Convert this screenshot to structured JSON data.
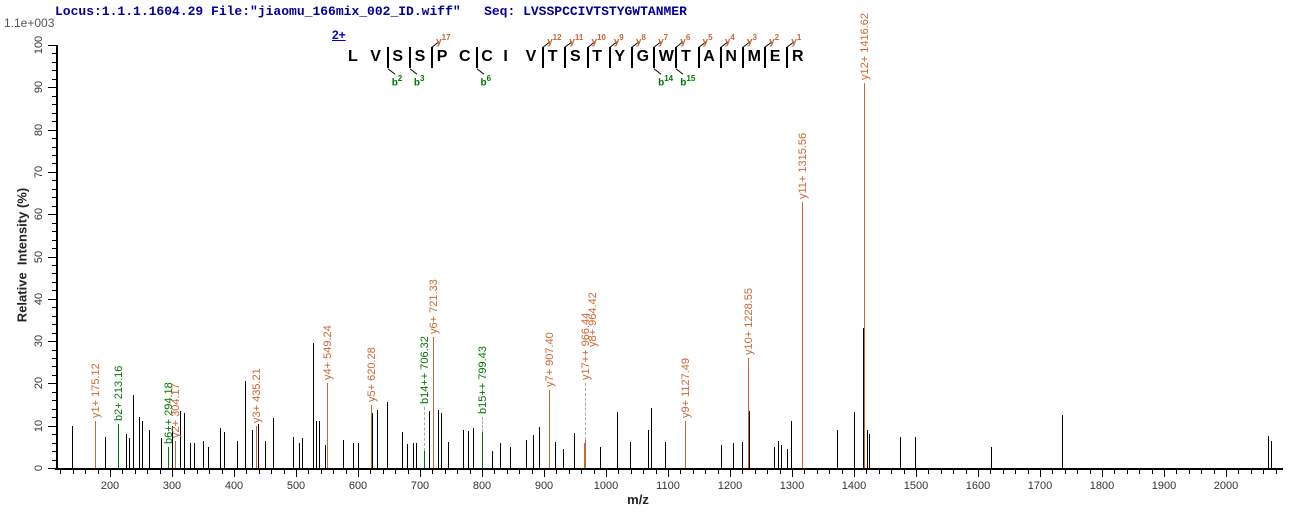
{
  "header": {
    "title_line": "Locus:1.1.1.1604.29 File:\"jiaomu_166mix_002_ID.wiff\"   Seq: LVSSPCCIVTSTYGWTANMER",
    "max_intensity": "1.1e+003"
  },
  "sequence": {
    "charge": "2+",
    "residues": [
      "L",
      "V",
      "S",
      "S",
      "P",
      "C",
      "C",
      "I",
      "V",
      "T",
      "S",
      "T",
      "Y",
      "G",
      "W",
      "T",
      "A",
      "N",
      "M",
      "E",
      "R"
    ],
    "cleavages": [
      {
        "after": 2,
        "b": "b2"
      },
      {
        "after": 3,
        "b": "b3"
      },
      {
        "after": 4,
        "y": "y17"
      },
      {
        "after": 6,
        "b": "b6"
      },
      {
        "after": 9,
        "y": "y12"
      },
      {
        "after": 10,
        "y": "y11"
      },
      {
        "after": 11,
        "y": "y10"
      },
      {
        "after": 12,
        "y": "y9"
      },
      {
        "after": 13,
        "y": "y8"
      },
      {
        "after": 14,
        "y": "y7",
        "b": "b14"
      },
      {
        "after": 15,
        "y": "y6",
        "b": "b15"
      },
      {
        "after": 16,
        "y": "y5"
      },
      {
        "after": 17,
        "y": "y4"
      },
      {
        "after": 18,
        "y": "y3"
      },
      {
        "after": 19,
        "y": "y2"
      },
      {
        "after": 20,
        "y": "y1"
      }
    ]
  },
  "colors": {
    "y_ion": "#cc6633",
    "b_ion": "#007700",
    "peak": "#000000",
    "header_text": "#000099",
    "charge": "#0000cc",
    "leader_dash": "#aaaaaa"
  },
  "chart_data": {
    "type": "bar",
    "subtype": "ms2-fragment-spectrum",
    "title": "",
    "xlabel": "m/z",
    "ylabel": "Relative  Intensity (%)",
    "x_axis": {
      "min": 114,
      "max": 2092,
      "label_start": 200,
      "label_end": 2000,
      "major_step": 100,
      "minor_step": 20
    },
    "y_axis": {
      "min": 0,
      "max": 100,
      "major_step": 10,
      "minor_step": 2,
      "base_peak_counts": "1.1e+003"
    },
    "grid": false,
    "legend": false,
    "labeled_peaks": [
      {
        "label": "y1+ 175.12",
        "mz": 175.12,
        "ion": "y",
        "pct": 11
      },
      {
        "label": "b2+ 213.16",
        "mz": 213.16,
        "ion": "b",
        "pct": 10.5
      },
      {
        "label": "b6++ 294.18",
        "mz": 294.18,
        "ion": "b",
        "pct": 5
      },
      {
        "label": "y2+ 304.17",
        "mz": 304.17,
        "ion": "y",
        "pct": 6.5
      },
      {
        "label": "y3+ 435.21",
        "mz": 435.21,
        "ion": "y",
        "pct": 10
      },
      {
        "label": "y4+ 549.24",
        "mz": 549.24,
        "ion": "y",
        "pct": 20
      },
      {
        "label": "y5+ 620.28",
        "mz": 620.28,
        "ion": "y",
        "pct": 15
      },
      {
        "label": "b14++ 706.32",
        "mz": 706.32,
        "ion": "b",
        "pct": 4,
        "label_pct": 14.5,
        "dashed": true
      },
      {
        "label": "y6+ 721.33",
        "mz": 721.33,
        "ion": "y",
        "pct": 31
      },
      {
        "label": "b15++ 799.43",
        "mz": 799.43,
        "ion": "b",
        "pct": 8.5,
        "label_pct": 12,
        "dashed": true
      },
      {
        "label": "y7+ 907.40",
        "mz": 907.4,
        "ion": "y",
        "pct": 18.5
      },
      {
        "label": "y8+ 964.42",
        "mz": 964.42,
        "ion": "y",
        "pct": 6,
        "label_pct": 28,
        "label_x": 588
      },
      {
        "label": "y17++ 966.44",
        "mz": 966.44,
        "ion": "y",
        "pct": 6.6,
        "label_pct": 20,
        "dashed": true
      },
      {
        "label": "y9+ 1127.49",
        "mz": 1127.49,
        "ion": "y",
        "pct": 11
      },
      {
        "label": "y10+ 1228.55",
        "mz": 1228.55,
        "ion": "y",
        "pct": 26
      },
      {
        "label": "y11+ 1315.56",
        "mz": 1315.56,
        "ion": "y",
        "pct": 63
      },
      {
        "label": "y12+ 1416.62",
        "mz": 1416.62,
        "ion": "y",
        "pct": 91
      }
    ],
    "peaks": [
      [
        139,
        10
      ],
      [
        192,
        7.3
      ],
      [
        226,
        8
      ],
      [
        231,
        7
      ],
      [
        237,
        17.3
      ],
      [
        247,
        12
      ],
      [
        251,
        11
      ],
      [
        263,
        9
      ],
      [
        282,
        7
      ],
      [
        300,
        10
      ],
      [
        313,
        13.5
      ],
      [
        319,
        13
      ],
      [
        329,
        6
      ],
      [
        335,
        6
      ],
      [
        350,
        6.5
      ],
      [
        358,
        5
      ],
      [
        377,
        9.5
      ],
      [
        384,
        8.5
      ],
      [
        405,
        6.5
      ],
      [
        418,
        20.5
      ],
      [
        429,
        9
      ],
      [
        439,
        10.5
      ],
      [
        450,
        6.5
      ],
      [
        463,
        11.8
      ],
      [
        495,
        7.3
      ],
      [
        505,
        6
      ],
      [
        510,
        7
      ],
      [
        527,
        29.5
      ],
      [
        533,
        11
      ],
      [
        537,
        11
      ],
      [
        546,
        5.5
      ],
      [
        576,
        6.6
      ],
      [
        592,
        6
      ],
      [
        600,
        6
      ],
      [
        623,
        13
      ],
      [
        631,
        13.7
      ],
      [
        647,
        15.6
      ],
      [
        671,
        8.5
      ],
      [
        679,
        5.6
      ],
      [
        689,
        6
      ],
      [
        694,
        6
      ],
      [
        715,
        13.5
      ],
      [
        729,
        13.7
      ],
      [
        734,
        13
      ],
      [
        745,
        6.2
      ],
      [
        770,
        9
      ],
      [
        778,
        8.7
      ],
      [
        786,
        9.5
      ],
      [
        816,
        4
      ],
      [
        829,
        6
      ],
      [
        845,
        5
      ],
      [
        871,
        6.6
      ],
      [
        882,
        7.8
      ],
      [
        892,
        9.8
      ],
      [
        918,
        6.2
      ],
      [
        931,
        4.6
      ],
      [
        948,
        8.2
      ],
      [
        990,
        5
      ],
      [
        1018,
        13.3
      ],
      [
        1039,
        6.2
      ],
      [
        1068,
        9
      ],
      [
        1073,
        14.1
      ],
      [
        1095,
        6.2
      ],
      [
        1185,
        5.4
      ],
      [
        1205,
        5.8
      ],
      [
        1219,
        6.2
      ],
      [
        1230,
        13.5
      ],
      [
        1271,
        5
      ],
      [
        1277,
        6.5
      ],
      [
        1282,
        5.5
      ],
      [
        1292,
        4.5
      ],
      [
        1299,
        11
      ],
      [
        1373,
        9
      ],
      [
        1400,
        13.3
      ],
      [
        1415,
        33
      ],
      [
        1421,
        9
      ],
      [
        1424,
        8
      ],
      [
        1474,
        7.4
      ],
      [
        1498,
        7.4
      ],
      [
        1621,
        5
      ],
      [
        1735,
        12.5
      ],
      [
        2068,
        7.5
      ],
      [
        2073,
        6.5
      ]
    ]
  }
}
